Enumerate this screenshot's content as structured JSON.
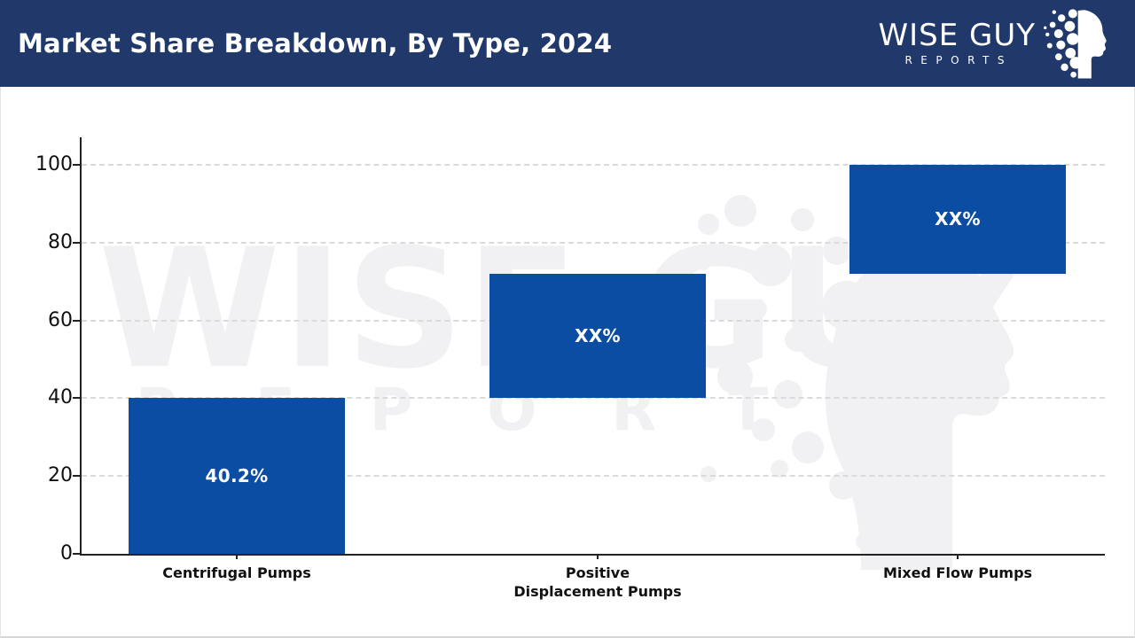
{
  "header": {
    "title": "Market Share Breakdown, By Type, 2024",
    "logo": {
      "line1": "WISE GUY",
      "line2": "REPORTS"
    }
  },
  "watermark": {
    "line1": "WISE GUY",
    "line2": "REPORTS"
  },
  "chart_data": {
    "type": "bar",
    "subtype": "stepped-stacked-percentage (waterfall style, segments sum to 100)",
    "title": "Market Share Breakdown, By Type, 2024",
    "categories": [
      "Centrifugal Pumps",
      "Positive\nDisplacement Pumps",
      "Mixed Flow Pumps"
    ],
    "segments": [
      {
        "category": "Centrifugal Pumps",
        "start": 0,
        "end": 40.2,
        "label": "40.2%"
      },
      {
        "category": "Positive Displacement Pumps",
        "start": 40.2,
        "end": 72,
        "label": "XX%"
      },
      {
        "category": "Mixed Flow Pumps",
        "start": 72,
        "end": 100,
        "label": "XX%"
      }
    ],
    "ylim": [
      0,
      100
    ],
    "yticks": [
      0,
      20,
      40,
      60,
      80,
      100
    ],
    "xlabel": "",
    "ylabel": "",
    "bar_color": "#0b4da2",
    "label_color": "#ffffff",
    "grid": "horizontal dashed",
    "legend": "none"
  }
}
